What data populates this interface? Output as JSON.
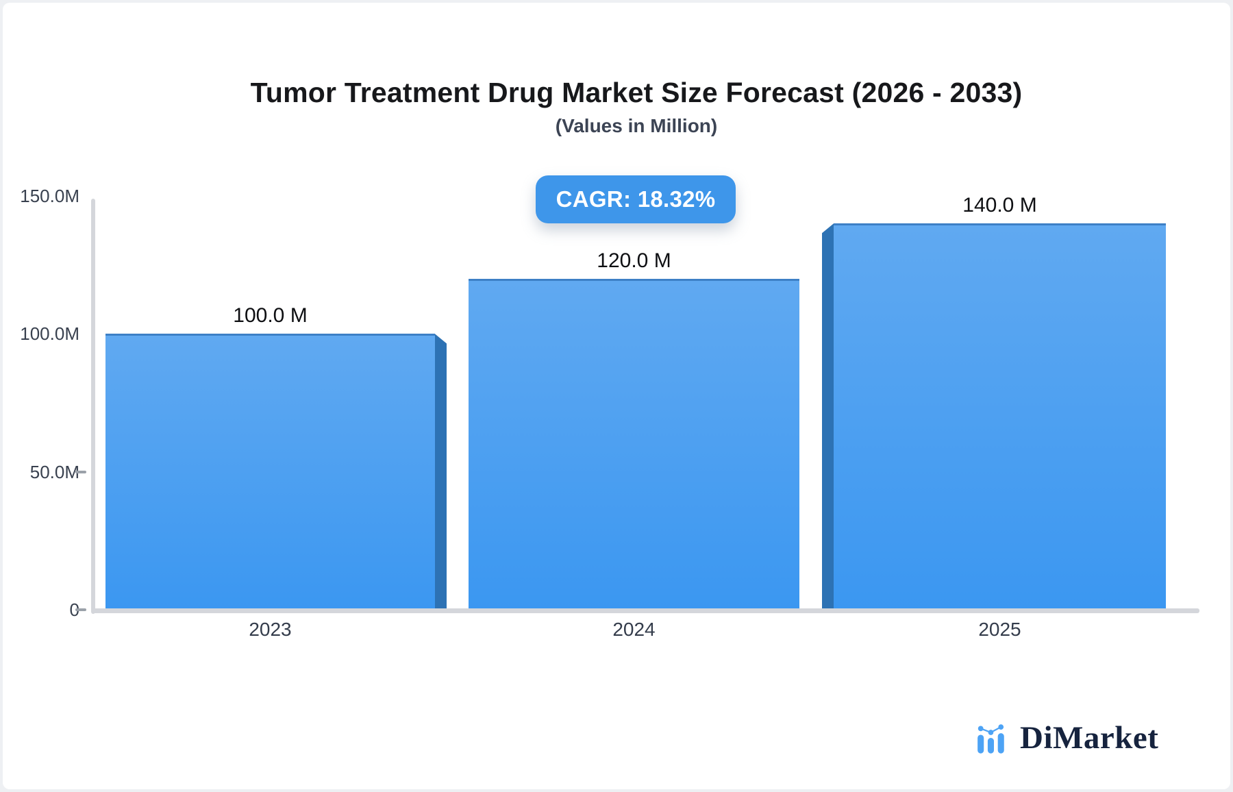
{
  "chart": {
    "title": "Tumor Treatment Drug Market Size Forecast (2026 - 2033)",
    "subtitle": "(Values in Million)",
    "cagr_label": "CAGR: 18.32%",
    "accent_color": "#3e96ea"
  },
  "chart_data": {
    "type": "bar",
    "title": "Tumor Treatment Drug Market Size Forecast (2026 - 2033)",
    "subtitle": "(Values in Million)",
    "unit": "Million",
    "cagr_percent": 18.32,
    "categories": [
      "2023",
      "2024",
      "2025"
    ],
    "values": [
      100.0,
      120.0,
      140.0
    ],
    "value_labels": [
      "100.0 M",
      "120.0 M",
      "140.0 M"
    ],
    "xlabel": "",
    "ylabel": "",
    "ylim": [
      0,
      150
    ],
    "grid": false,
    "legend": false,
    "y_ticks": [
      {
        "label": "150.0M",
        "value": 150,
        "dash": false
      },
      {
        "label": "100.0M",
        "value": 100,
        "dash": false
      },
      {
        "label": "50.0M",
        "value": 50,
        "dash": true
      },
      {
        "label": "0",
        "value": 0,
        "dash": true
      }
    ],
    "bar_color_top": "#60a9f1",
    "bar_color_bottom": "#3b97f1",
    "bar_border_color": "#3d80c6",
    "bar_side_color": "#2d72b4",
    "axis_color": "#d4d6db"
  },
  "logo": {
    "text": "DiMarket",
    "icon": "mini-bar-chart-icon",
    "text_color": "#16233e",
    "icon_color": "#4da3f5"
  }
}
